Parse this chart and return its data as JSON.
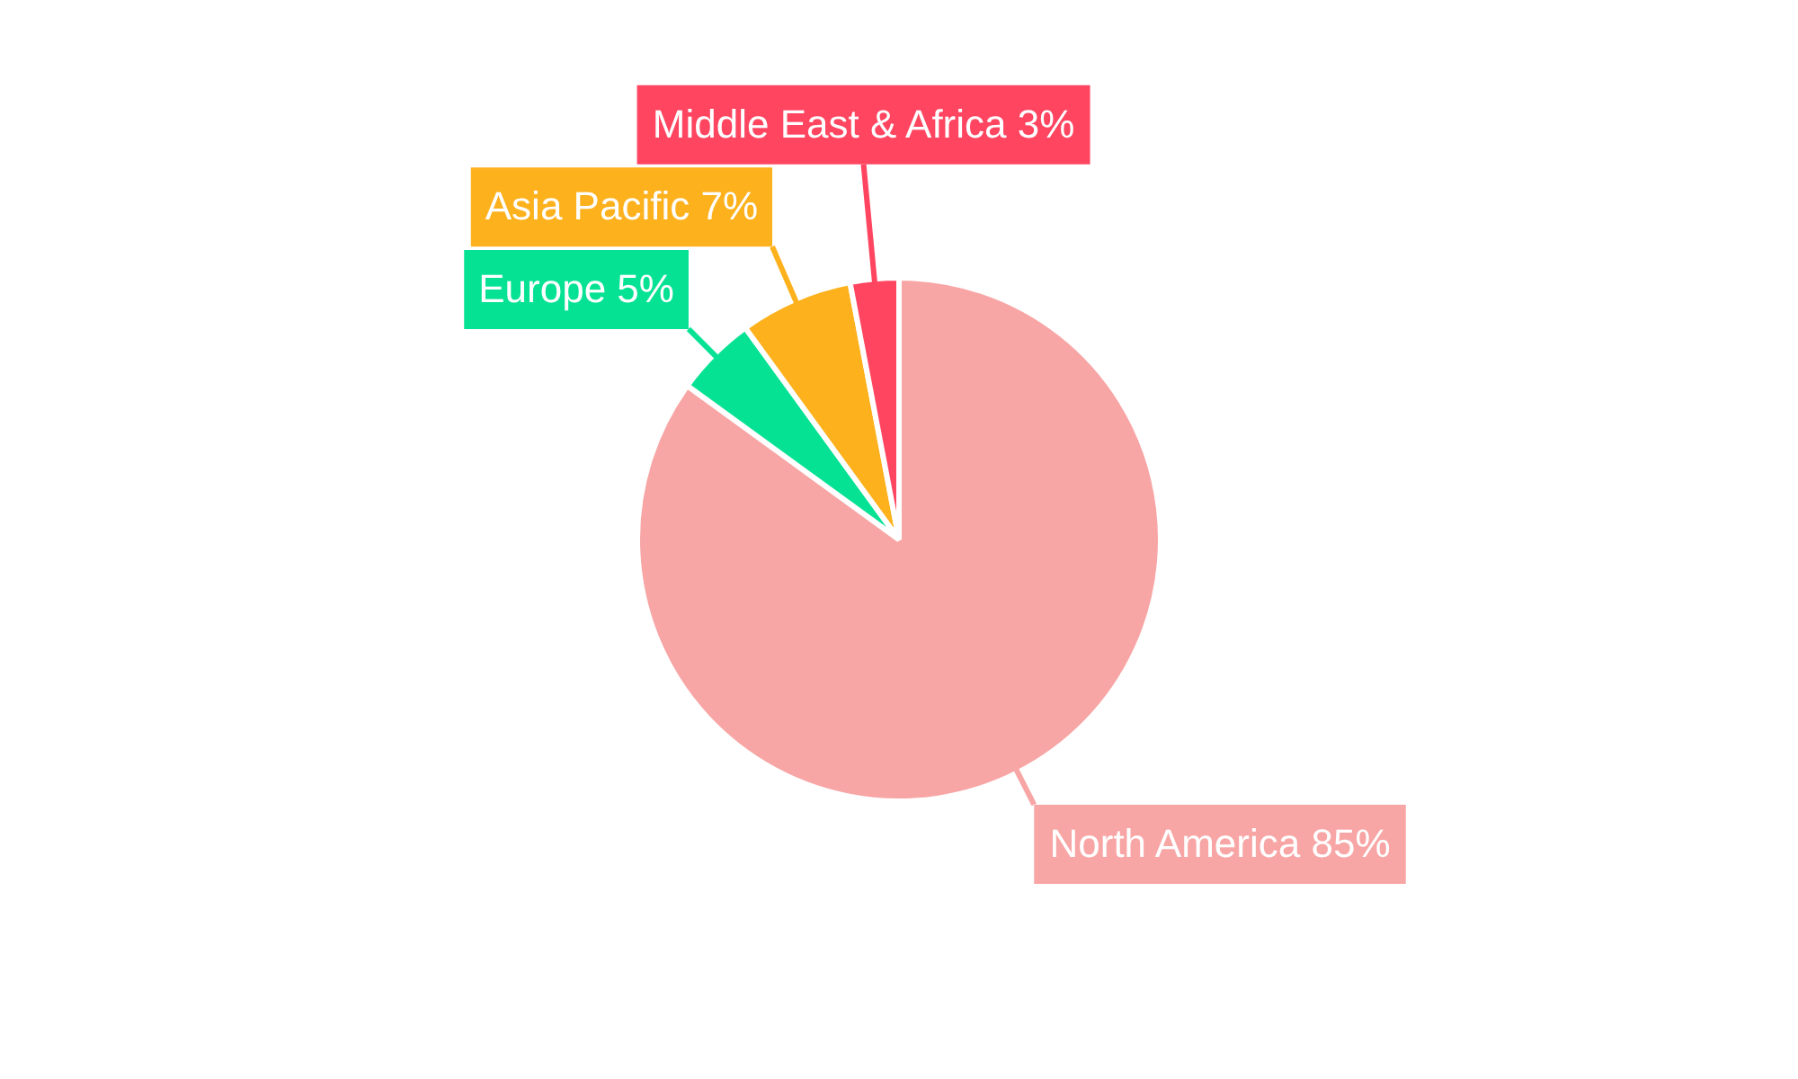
{
  "chart_data": {
    "type": "pie",
    "categories": [
      "North America",
      "Europe",
      "Asia Pacific",
      "Middle East & Africa"
    ],
    "values": [
      85,
      5,
      7,
      3
    ],
    "colors": [
      "#f8a5a5",
      "#06e294",
      "#fdb11d",
      "#ff4560"
    ],
    "value_labels": [
      "85%",
      "5%",
      "7%",
      "3%"
    ],
    "legend": false
  }
}
